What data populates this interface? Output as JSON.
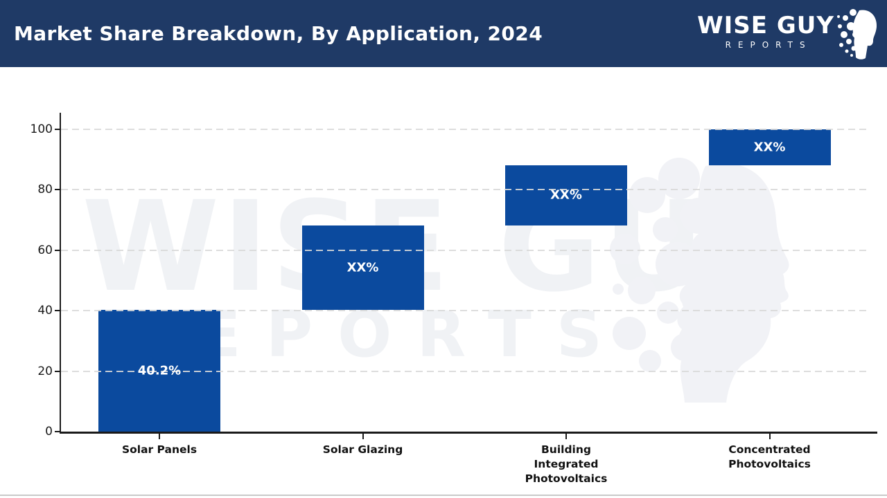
{
  "header": {
    "title": "Market Share Breakdown, By Application, 2024",
    "bg_color": "#1f3a66",
    "logo": {
      "line1": "WISE GUY",
      "line2": "REPORTS"
    }
  },
  "watermark": {
    "line1": "WISE GU",
    "line2": "REPORTS"
  },
  "chart_data": {
    "type": "bar",
    "subtype": "stacked-waterfall-single-column-per-category",
    "title": "Market Share Breakdown, By Application, 2024",
    "xlabel": "",
    "ylabel": "",
    "categories": [
      "Solar Panels",
      "Solar Glazing",
      "Building\nIntegrated\nPhotovoltaics",
      "Concentrated\nPhotovoltaics"
    ],
    "segments": [
      {
        "category": "Solar Panels",
        "start": 0,
        "end": 40.2,
        "label": "40.2%"
      },
      {
        "category": "Solar Glazing",
        "start": 40.2,
        "end": 68.2,
        "label": "XX%"
      },
      {
        "category": "Building Integrated Photovoltaics",
        "start": 68.2,
        "end": 88.2,
        "label": "XX%"
      },
      {
        "category": "Concentrated Photovoltaics",
        "start": 88.2,
        "end": 100,
        "label": "XX%"
      }
    ],
    "yticks": [
      0,
      20,
      40,
      60,
      80,
      100
    ],
    "ylim": [
      0,
      105
    ],
    "bar_color": "#0b4a9e",
    "bar_label_color": "#ffffff",
    "grid": "horizontal-dashed",
    "gridline_color": "#d9d9d9",
    "legend": "none"
  }
}
